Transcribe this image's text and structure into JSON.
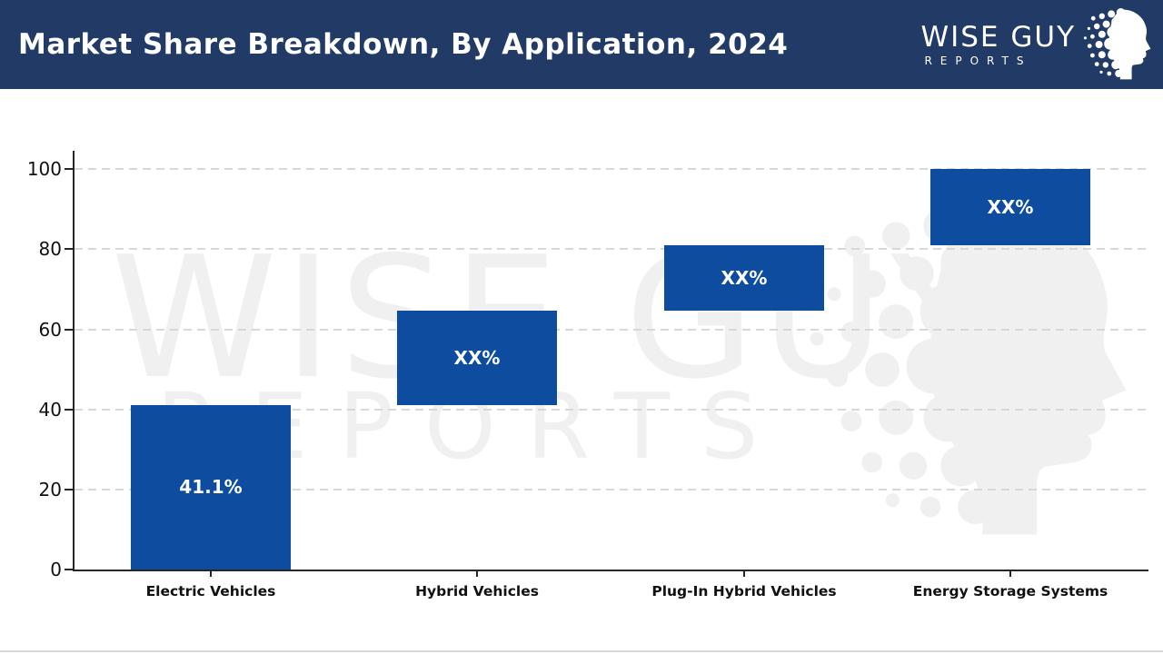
{
  "header": {
    "bg_color": "#213A66",
    "title": "Market Share Breakdown, By Application, 2024",
    "logo": {
      "wordmark": "WISE GUY",
      "subtext": "REPORTS"
    }
  },
  "watermark": {
    "line1": "WISE GUY",
    "line2": "REPORTS"
  },
  "chart_data": {
    "type": "bar",
    "subtype": "waterfall",
    "title": "Market Share Breakdown, By Application, 2024",
    "categories": [
      "Electric Vehicles",
      "Hybrid Vehicles",
      "Plug-In Hybrid Vehicles",
      "Energy Storage Systems"
    ],
    "segments": [
      {
        "category": "Electric Vehicles",
        "start": 0,
        "end": 41.1,
        "label": "41.1%"
      },
      {
        "category": "Hybrid Vehicles",
        "start": 41.1,
        "end": 64.7,
        "label": "XX%"
      },
      {
        "category": "Plug-In Hybrid Vehicles",
        "start": 64.7,
        "end": 81.0,
        "label": "XX%"
      },
      {
        "category": "Energy Storage Systems",
        "start": 81.0,
        "end": 100.0,
        "label": "XX%"
      }
    ],
    "yticks": [
      0,
      20,
      40,
      60,
      80,
      100
    ],
    "ylim": [
      0,
      100
    ],
    "xlabel": "",
    "ylabel": "",
    "grid": "horizontal-dashed",
    "legend": "none",
    "bar_color": "#0D4C9F",
    "bar_label_color": "#ffffff",
    "axis_color": "#262626",
    "gridline_color": "#d8d8d8"
  }
}
